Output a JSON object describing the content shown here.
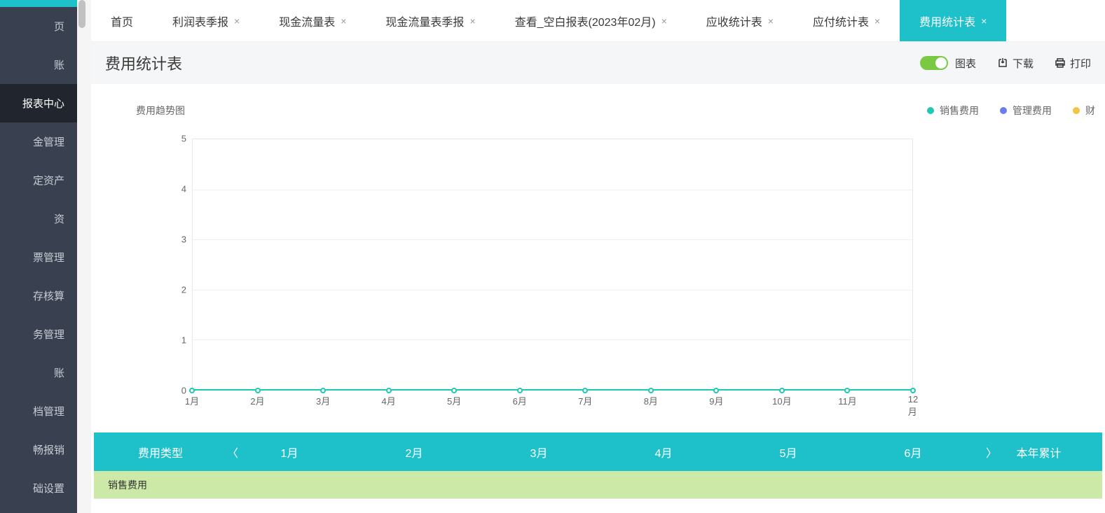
{
  "sidebar": {
    "items": [
      {
        "label": "页"
      },
      {
        "label": "账"
      },
      {
        "label": "报表中心"
      },
      {
        "label": "金管理"
      },
      {
        "label": "定资产"
      },
      {
        "label": "资"
      },
      {
        "label": "票管理"
      },
      {
        "label": "存核算"
      },
      {
        "label": "务管理"
      },
      {
        "label": "账"
      },
      {
        "label": "档管理"
      },
      {
        "label": "畅报销"
      },
      {
        "label": "础设置"
      }
    ],
    "active_index": 2
  },
  "tabs": [
    {
      "label": "首页",
      "closable": false
    },
    {
      "label": "利润表季报",
      "closable": true
    },
    {
      "label": "现金流量表",
      "closable": true
    },
    {
      "label": "现金流量表季报",
      "closable": true
    },
    {
      "label": "查看_空白报表(2023年02月)",
      "closable": true
    },
    {
      "label": "应收统计表",
      "closable": true
    },
    {
      "label": "应付统计表",
      "closable": true
    },
    {
      "label": "费用统计表",
      "closable": true
    }
  ],
  "active_tab_index": 7,
  "page_title": "费用统计表",
  "toolbar": {
    "chart_label": "图表",
    "download_label": "下载",
    "print_label": "打印"
  },
  "chart": {
    "title": "费用趋势图",
    "type": "line",
    "legend": [
      {
        "label": "销售费用",
        "color": "#1ec9b4"
      },
      {
        "label": "管理费用",
        "color": "#6a7ef0"
      },
      {
        "label": "财",
        "color": "#f5c242"
      }
    ],
    "x_labels": [
      "1月",
      "2月",
      "3月",
      "4月",
      "5月",
      "6月",
      "7月",
      "8月",
      "9月",
      "10月",
      "11月",
      "12月"
    ],
    "y_ticks": [
      0,
      1,
      2,
      3,
      4,
      5
    ],
    "ylim": [
      0,
      5
    ],
    "series": [
      {
        "name": "销售费用",
        "color": "#1ec9b4",
        "values": [
          0,
          0,
          0,
          0,
          0,
          0,
          0,
          0,
          0,
          0,
          0,
          0
        ]
      }
    ],
    "grid_color": "#f0f0f0",
    "border_color": "#e8e8e8",
    "background_color": "#ffffff",
    "axis_fontsize": 13,
    "title_fontsize": 14
  },
  "table": {
    "header_bg": "#1ec0c9",
    "header_first": "费用类型",
    "month_headers": [
      "1月",
      "2月",
      "3月",
      "4月",
      "5月",
      "6月"
    ],
    "header_last": "本年累计",
    "rows": [
      {
        "label": "销售费用",
        "highlight": true,
        "values": [
          "",
          "",
          "",
          "",
          "",
          ""
        ]
      }
    ],
    "highlight_bg": "#cde9a8"
  }
}
